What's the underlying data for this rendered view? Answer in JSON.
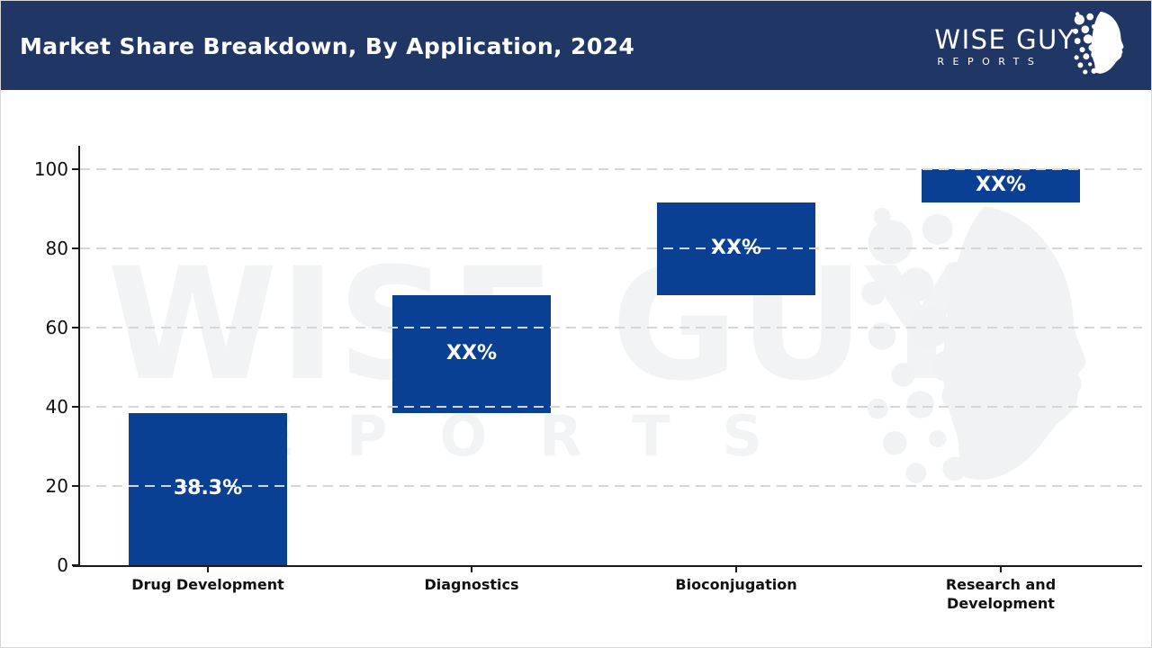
{
  "header": {
    "title": "Market Share Breakdown, By Application, 2024",
    "bg_color": "#203765",
    "logo": {
      "line1": "WISE GUY",
      "line2": "REPORTS",
      "icon": "dotted-face"
    }
  },
  "watermark": {
    "line1": "WISE GUY",
    "line2": "REPORTS",
    "icon": "dotted-face",
    "color": "#f2f3f5"
  },
  "chart_data": {
    "type": "bar",
    "subtype": "waterfall",
    "title": "Market Share Breakdown, By Application, 2024",
    "xlabel": "",
    "ylabel": "",
    "categories": [
      "Drug Development",
      "Diagnostics",
      "Bioconjugation",
      "Research and\nDevelopment"
    ],
    "segments": [
      {
        "category": "Drug Development",
        "start": 0,
        "end": 38.3,
        "label": "38.3%"
      },
      {
        "category": "Diagnostics",
        "start": 38.3,
        "end": 68.2,
        "label": "XX%"
      },
      {
        "category": "Bioconjugation",
        "start": 68.2,
        "end": 91.5,
        "label": "XX%"
      },
      {
        "category": "Research and\nDevelopment",
        "start": 91.5,
        "end": 100,
        "label": "XX%"
      }
    ],
    "yticks": [
      0,
      20,
      40,
      60,
      80,
      100
    ],
    "ylim": [
      0,
      100
    ],
    "bar_color": "#0a4094",
    "grid": "horizontal-dashed",
    "gridline_color": "#d6d6d6",
    "legend_position": "none"
  }
}
